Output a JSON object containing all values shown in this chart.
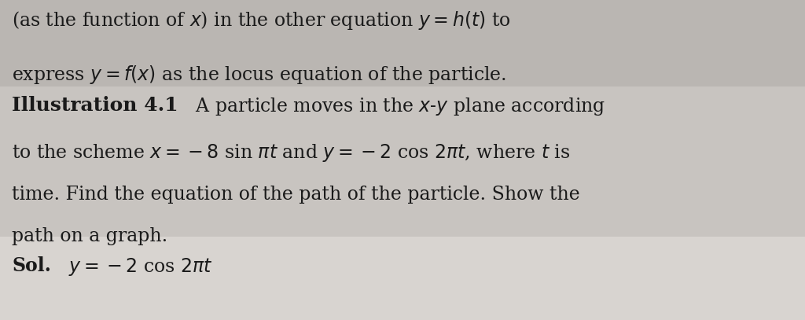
{
  "bg_color_top": "#c8c4c0",
  "bg_color_bottom": "#d8d4d0",
  "box_color": "#c0bcb8",
  "line1": "(as the function of $x$) in the other equation $y = h(t)$ to",
  "line2": "express $y = f(x)$ as the locus equation of the particle.",
  "illus_label": "Illustration 4.1",
  "illus_body_l1": " A particle moves in the $x$-$y$ plane according",
  "illus_body_l2": "to the scheme $x = -8$ sin $\\pi t$ and $y = -2$ cos $2\\pi t$, where $t$ is",
  "illus_body_l3": "time. Find the equation of the path of the particle. Show the",
  "illus_body_l4": "path on a graph.",
  "sol_label": "Sol.",
  "sol_body": "$y = -2$ cos $2 \\pi t$",
  "text_color": "#1a1a1a",
  "font_size_top": 17,
  "font_size_box": 17,
  "font_size_sol": 17
}
